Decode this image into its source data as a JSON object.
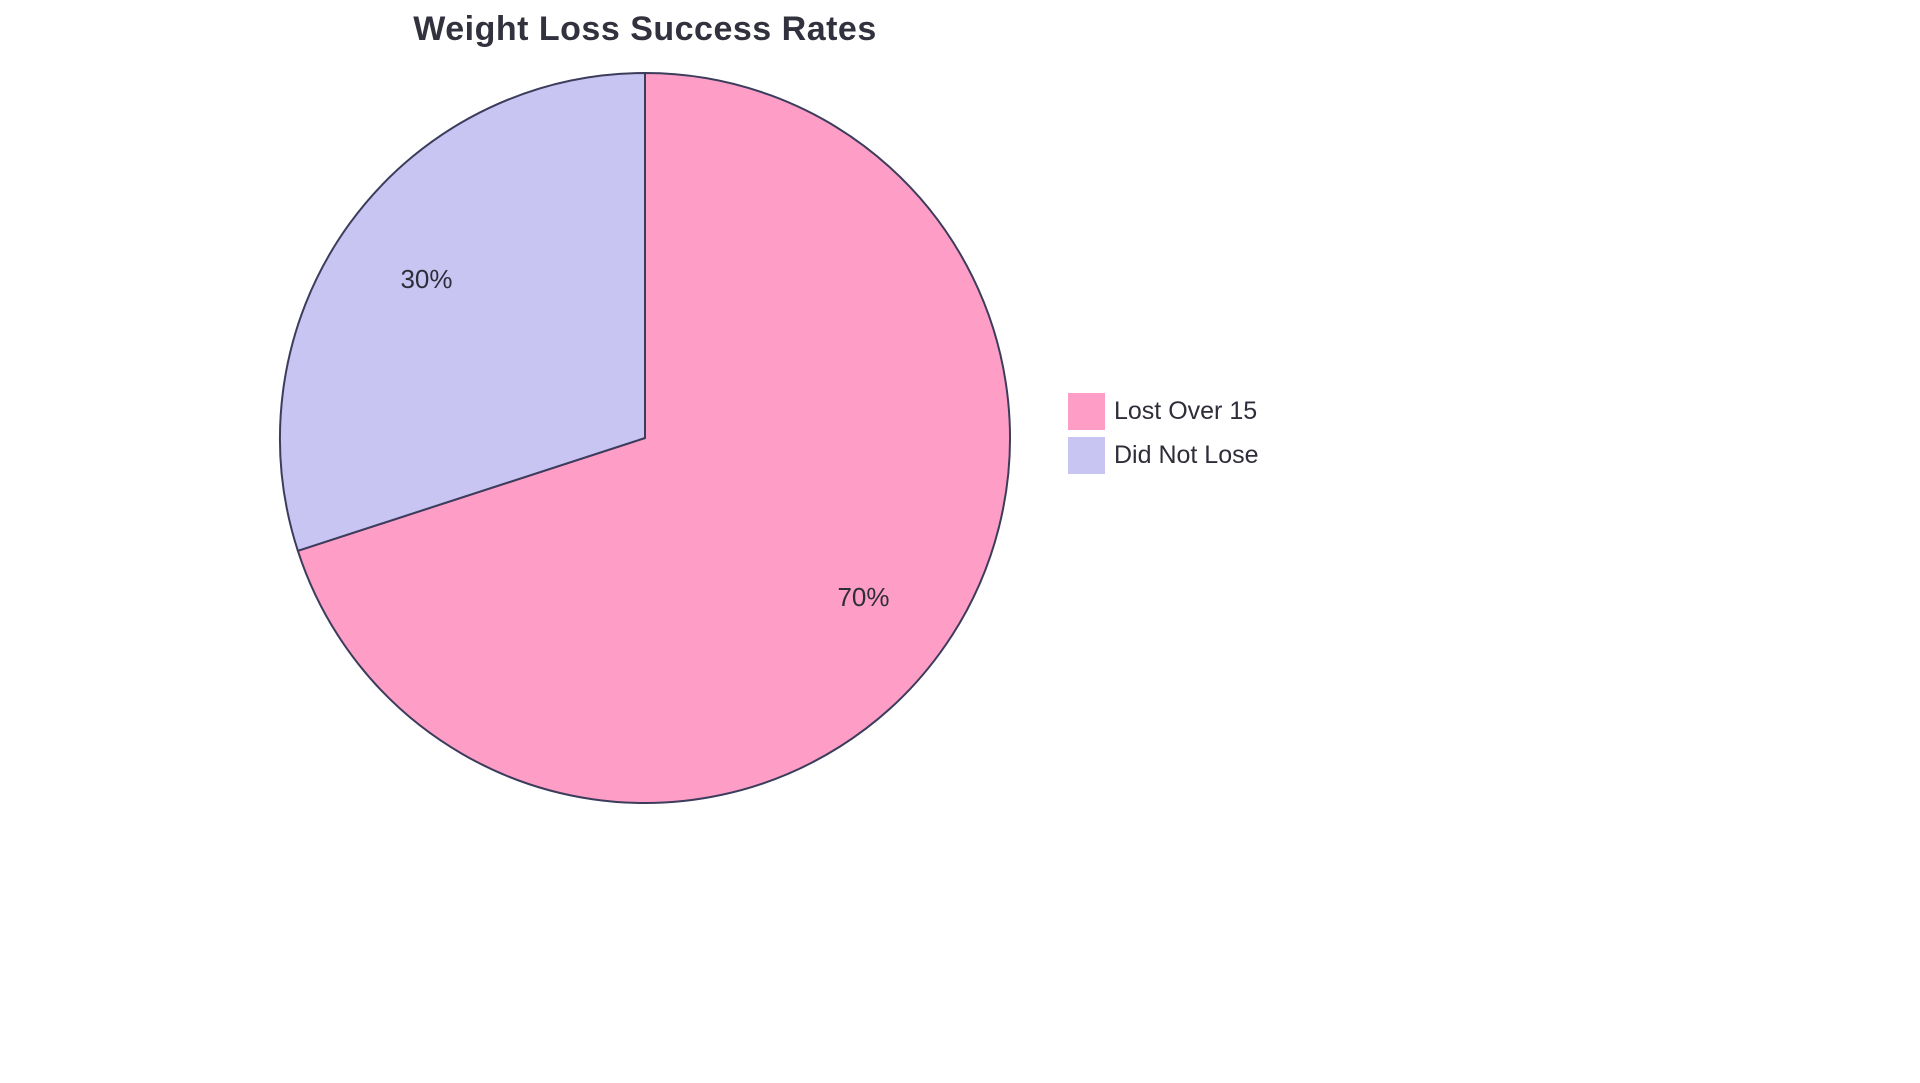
{
  "chart_data": {
    "type": "pie",
    "title": "Weight Loss Success Rates",
    "categories": [
      "Lost Over 15",
      "Did Not Lose"
    ],
    "values": [
      70,
      30
    ],
    "slice_labels": [
      "70%",
      "30%"
    ],
    "colors": [
      "#FE9EC6",
      "#C9C5F3"
    ],
    "stroke_color": "#3C3C5C",
    "start_angle_deg": 0,
    "direction": "clockwise",
    "legend_position": "right",
    "background": "#FFFFFF"
  }
}
